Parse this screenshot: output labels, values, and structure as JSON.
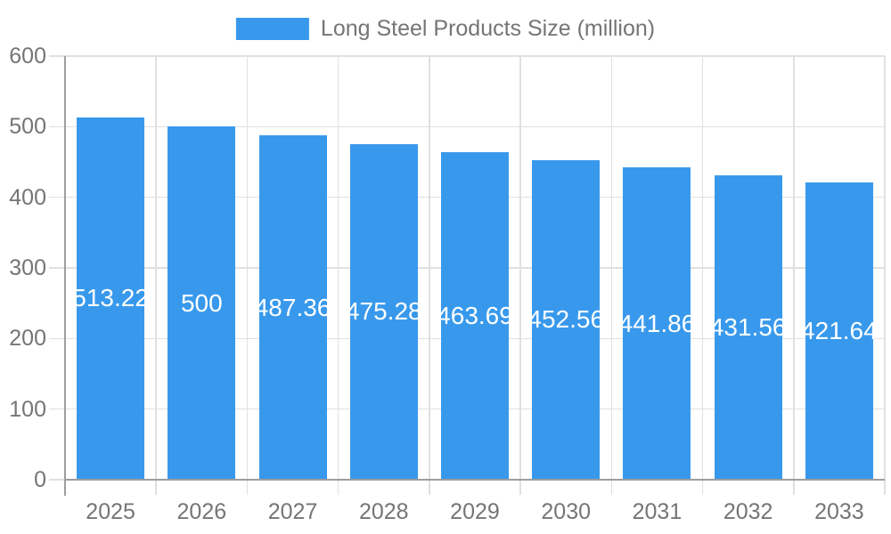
{
  "colors": {
    "bar": "#3899EC",
    "axis_line": "#9e9e9e",
    "gridline": "#e0e0e0",
    "axis_text": "#757575",
    "bar_label_text": "#ffffff",
    "background": "#ffffff"
  },
  "chart_data": {
    "type": "bar",
    "title": "",
    "legend": [
      "Long Steel Products Size (million)"
    ],
    "legend_position": "top-center",
    "categories": [
      "2025",
      "2026",
      "2027",
      "2028",
      "2029",
      "2030",
      "2031",
      "2032",
      "2033"
    ],
    "values": [
      513.22,
      500,
      487.36,
      475.28,
      463.69,
      452.56,
      441.86,
      431.56,
      421.64
    ],
    "value_labels": [
      "513.22",
      "500",
      "487.36",
      "475.28",
      "463.69",
      "452.56",
      "441.86",
      "431.56",
      "421.64"
    ],
    "xlabel": "",
    "ylabel": "",
    "ylim": [
      0,
      600
    ],
    "yticks": [
      0,
      100,
      200,
      300,
      400,
      500,
      600
    ],
    "grid": true
  }
}
